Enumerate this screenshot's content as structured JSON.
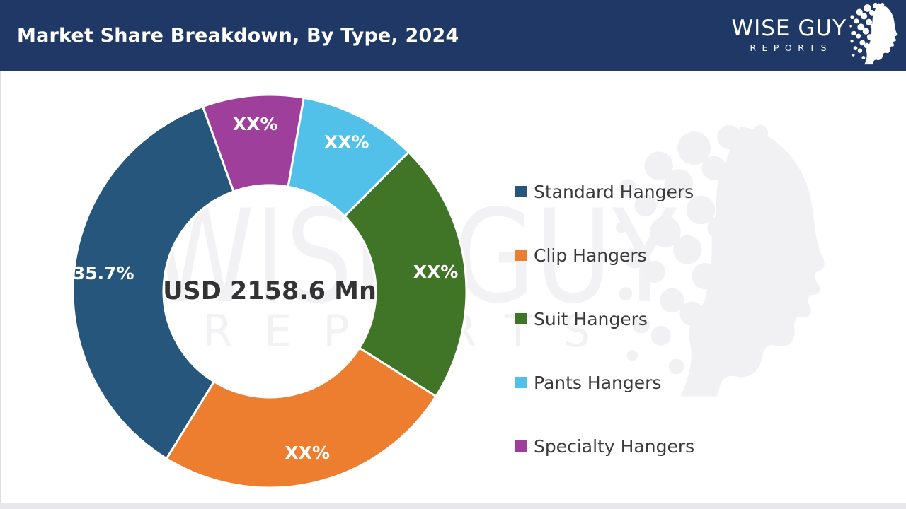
{
  "header": {
    "title": "Market Share Breakdown, By Type, 2024",
    "logo": {
      "line1": "WISE GUY",
      "line2": "REPORTS"
    }
  },
  "watermark": {
    "line1": "WISE GUY",
    "line2": "REPORTS"
  },
  "chart_data": {
    "type": "pie",
    "subtype": "donut",
    "title": "Market Share Breakdown, By Type, 2024",
    "center_label": "USD 2158.6 Mn",
    "legend_position": "right",
    "start_angle_deg": 211.6,
    "draw_order": [
      "Standard Hangers",
      "Specialty Hangers",
      "Pants Hangers",
      "Suit Hangers",
      "Clip Hangers"
    ],
    "segments": [
      {
        "label": "Standard Hangers",
        "value_pct": 35.7,
        "display": "35.7%",
        "color": "#27567C"
      },
      {
        "label": "Clip Hangers",
        "value_pct": 24.8,
        "display": "XX%",
        "color": "#ED7D2F"
      },
      {
        "label": "Suit Hangers",
        "value_pct": 21.5,
        "display": "XX%",
        "color": "#407527"
      },
      {
        "label": "Pants Hangers",
        "value_pct": 9.7,
        "display": "XX%",
        "color": "#52C1E9"
      },
      {
        "label": "Specialty Hangers",
        "value_pct": 8.3,
        "display": "XX%",
        "color": "#9F3F9C"
      }
    ]
  },
  "colors": {
    "header_bg": "#1F3865",
    "title_text": "#FFFFFF",
    "center_text": "#333333",
    "legend_text": "#3A3A3A",
    "watermark": "#F2F2F4",
    "segment_gap": "#FFFFFF"
  }
}
